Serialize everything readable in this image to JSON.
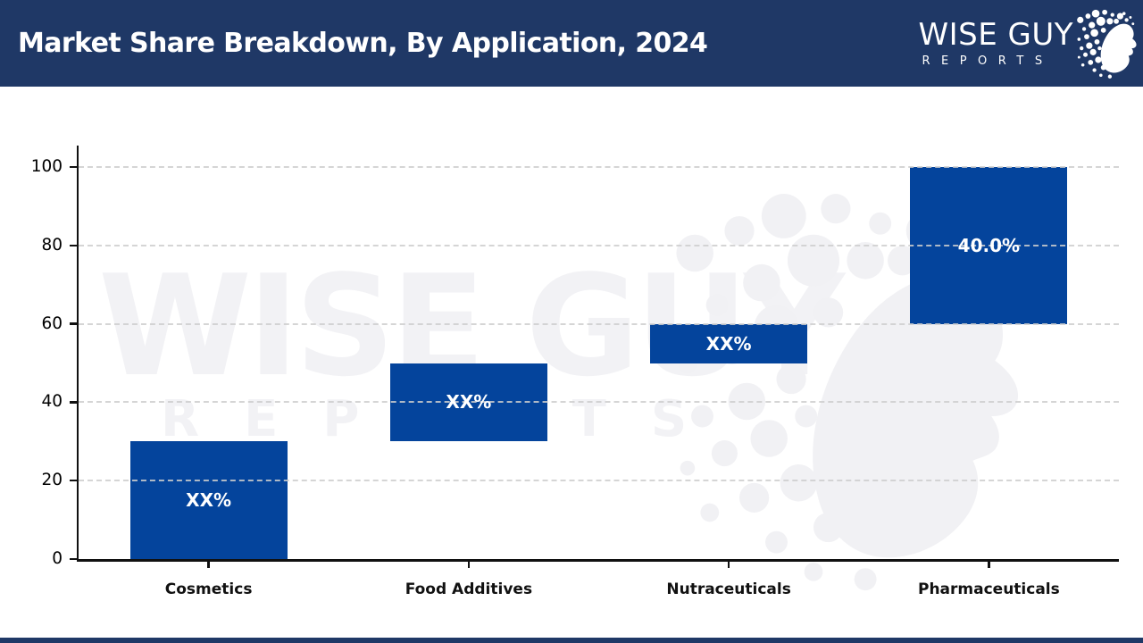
{
  "header": {
    "title": "Market Share Breakdown, By Application, 2024",
    "logo": {
      "wordmark": "WISE GUY",
      "subtitle": "REPORTS"
    }
  },
  "watermark": {
    "wordmark": "WISE GUY",
    "subtitle": "REPORTS"
  },
  "colors": {
    "header_bg": "#1f3866",
    "bar": "#04449c",
    "grid": "#cecece",
    "axis": "#111111",
    "bar_label_text": "#ffffff",
    "title_text": "#ffffff",
    "watermark": "#f2f2f5"
  },
  "chart_data": {
    "type": "bar",
    "subtype": "waterfall",
    "title": "Market Share Breakdown, By Application, 2024",
    "xlabel": "",
    "ylabel": "",
    "categories": [
      "Cosmetics",
      "Food Additives",
      "Nutraceuticals",
      "Pharmaceuticals"
    ],
    "bars": [
      {
        "category": "Cosmetics",
        "start": 0,
        "end": 30,
        "value": 30,
        "label": "XX%"
      },
      {
        "category": "Food Additives",
        "start": 30,
        "end": 50,
        "value": 20,
        "label": "XX%"
      },
      {
        "category": "Nutraceuticals",
        "start": 50,
        "end": 60,
        "value": 10,
        "label": "XX%"
      },
      {
        "category": "Pharmaceuticals",
        "start": 60,
        "end": 100,
        "value": 40,
        "label": "40.0%"
      }
    ],
    "yticks": [
      0,
      20,
      40,
      60,
      80,
      100
    ],
    "ylim": [
      0,
      105
    ],
    "grid": "horizontal-dashed",
    "grid_above_bars": true,
    "legend": "none"
  }
}
